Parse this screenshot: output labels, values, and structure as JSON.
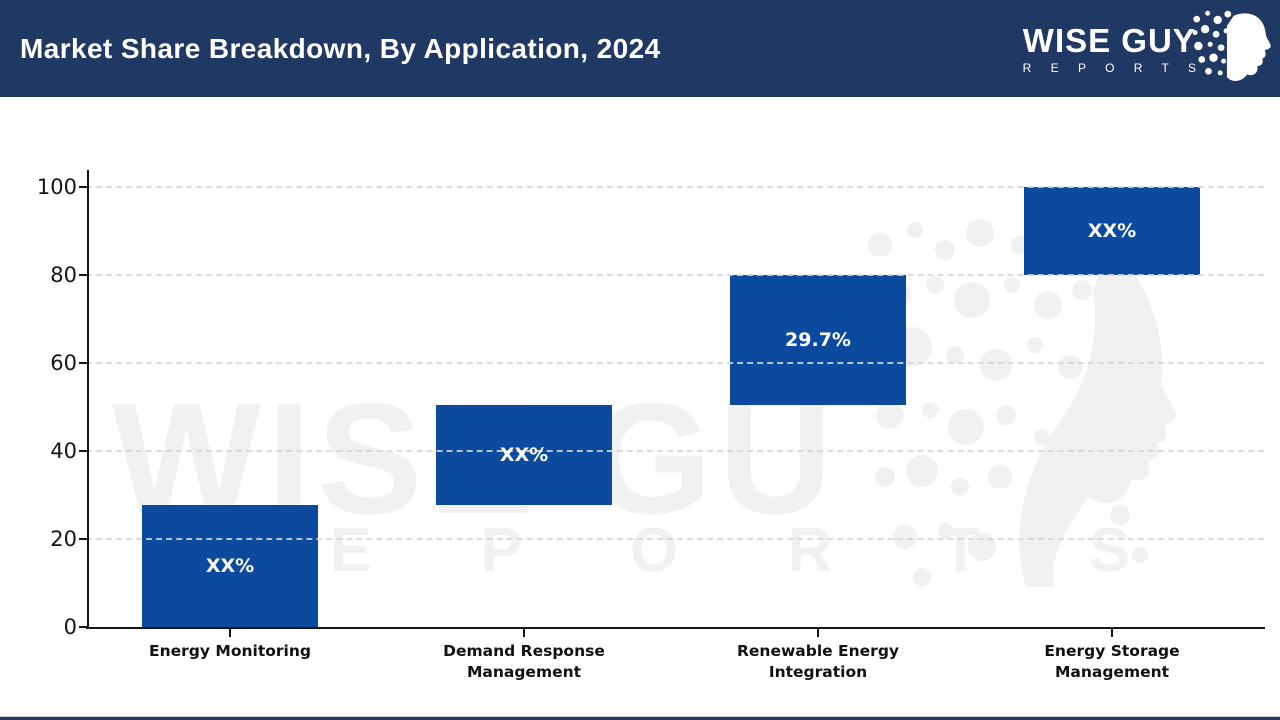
{
  "header": {
    "title": "Market Share Breakdown, By Application, 2024",
    "logo": {
      "line1": "WISE GUY",
      "line2": "R E P O R T S"
    }
  },
  "watermark": {
    "line1": "WISE GU",
    "line2": "R E P O R T S"
  },
  "colors": {
    "header_navy": "#1f3864",
    "bar_blue": "#0b4a9e",
    "gridline_gray": "#d9d9d9",
    "watermark_gray": "#f1f1f1",
    "bar_label_white": "#ffffff"
  },
  "chart_data": {
    "type": "bar",
    "subtype": "stacked-waterfall",
    "title": "Market Share Breakdown, By Application, 2024",
    "xlabel": "",
    "ylabel": "",
    "ylim": [
      0,
      104
    ],
    "yticks": [
      0,
      20,
      40,
      60,
      80,
      100
    ],
    "grid": "horizontal-dashed",
    "legend": "none",
    "categories": [
      [
        "Energy Monitoring"
      ],
      [
        "Demand Response",
        "Management"
      ],
      [
        "Renewable Energy",
        "Integration"
      ],
      [
        "Energy Storage",
        "Management"
      ]
    ],
    "segments": [
      {
        "category": "Energy Monitoring",
        "start": 0,
        "end": 27.7,
        "value": 27.7,
        "label": "XX%"
      },
      {
        "category": "Demand Response Management",
        "start": 27.7,
        "end": 50.4,
        "value": 22.7,
        "label": "XX%"
      },
      {
        "category": "Renewable Energy Integration",
        "start": 50.4,
        "end": 80.1,
        "value": 29.7,
        "label": "29.7%"
      },
      {
        "category": "Energy Storage Management",
        "start": 80.1,
        "end": 100,
        "value": 19.9,
        "label": "XX%"
      }
    ]
  }
}
